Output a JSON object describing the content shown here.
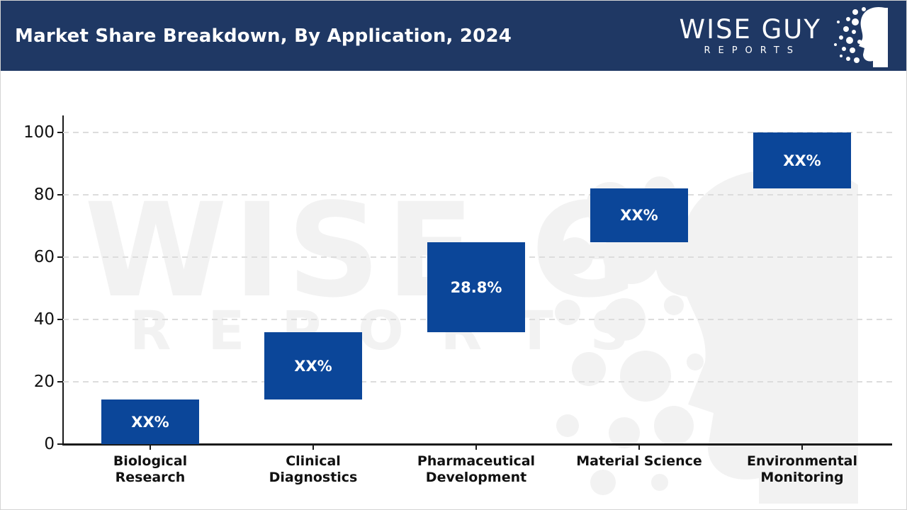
{
  "header": {
    "title": "Market Share Breakdown, By Application, 2024",
    "logo": {
      "line1": "WISE GUY",
      "line2": "REPORTS"
    }
  },
  "watermark": {
    "line1": "WISE GUY",
    "line2": "REPORTS"
  },
  "colors": {
    "header_bg": "#1f3864",
    "bar": "#0b4699",
    "grid": "#dcdcdc",
    "axis": "#1a1a1a",
    "watermark": "#f2f2f2"
  },
  "chart_data": {
    "type": "bar",
    "subtype": "waterfall",
    "title": "Market Share Breakdown, By Application, 2024",
    "categories": [
      "Biological Research",
      "Clinical Diagnostics",
      "Pharmaceutical Development",
      "Material Science",
      "Environmental Monitoring"
    ],
    "tick_labels": [
      "Biological\nResearch",
      "Clinical\nDiagnostics",
      "Pharmaceutical\nDevelopment",
      "Material Science",
      "Environmental\nMonitoring"
    ],
    "segments": [
      {
        "category": "Biological Research",
        "start": 0,
        "end": 14.3,
        "label": "XX%"
      },
      {
        "category": "Clinical Diagnostics",
        "start": 14.3,
        "end": 35.9,
        "label": "XX%"
      },
      {
        "category": "Pharmaceutical Development",
        "start": 35.9,
        "end": 64.7,
        "label": "28.8%"
      },
      {
        "category": "Material Science",
        "start": 64.7,
        "end": 82.0,
        "label": "XX%"
      },
      {
        "category": "Environmental Monitoring",
        "start": 82.0,
        "end": 100.0,
        "label": "XX%"
      }
    ],
    "ylim": [
      0,
      100
    ],
    "yticks": [
      0,
      20,
      40,
      60,
      80,
      100
    ],
    "grid": "dashed-horizontal",
    "legend": "none",
    "xlabel": "",
    "ylabel": ""
  }
}
